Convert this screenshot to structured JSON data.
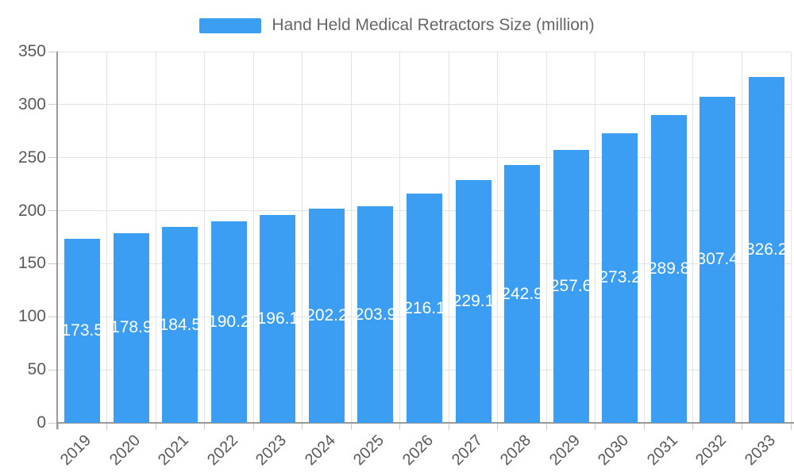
{
  "chart_data": {
    "type": "bar",
    "title": "Hand Held Medical Retractors Size (million)",
    "series": [
      {
        "name": "Hand Held Medical Retractors Size (million)",
        "values": [
          173.5,
          178.9,
          184.5,
          190.2,
          196.1,
          202.2,
          203.9,
          216.1,
          229.1,
          242.9,
          257.6,
          273.2,
          289.8,
          307.4,
          326.2
        ]
      }
    ],
    "categories": [
      "2019",
      "2020",
      "2021",
      "2022",
      "2023",
      "2024",
      "2025",
      "2026",
      "2027",
      "2028",
      "2029",
      "2030",
      "2031",
      "2032",
      "2033"
    ],
    "xlabel": "",
    "ylabel": "",
    "ylim": [
      0,
      350
    ],
    "yticks": [
      0,
      50,
      100,
      150,
      200,
      250,
      300,
      350
    ],
    "grid": true,
    "legend_position": "top-center",
    "value_labels": "inside-bar-center",
    "colors": {
      "bar": "#3B9EF3",
      "bar_value_label": "#ffffff",
      "legend_text": "#666666",
      "axis_text": "#595959",
      "grid_line": "#e3e3e3",
      "axis_line": "#999999",
      "tick_line": "#c9c9c9"
    }
  }
}
